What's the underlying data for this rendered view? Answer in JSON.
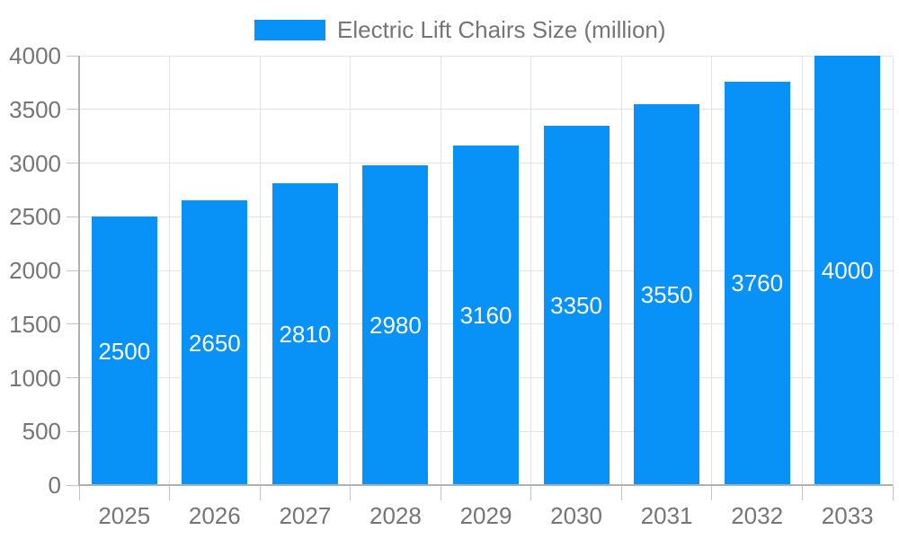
{
  "chart_data": {
    "type": "bar",
    "title": "",
    "categories": [
      "2025",
      "2026",
      "2027",
      "2028",
      "2029",
      "2030",
      "2031",
      "2032",
      "2033"
    ],
    "values": [
      2500,
      2650,
      2810,
      2980,
      3160,
      3350,
      3550,
      3760,
      4000
    ],
    "series_name": "Electric Lift Chairs Size (million)",
    "xlabel": "",
    "ylabel": "",
    "ylim": [
      0,
      4000
    ],
    "yticks": [
      0,
      500,
      1000,
      1500,
      2000,
      2500,
      3000,
      3500,
      4000
    ],
    "grid": true,
    "legend_position": "top",
    "bar_value_labels": "inside-centered"
  },
  "legend": {
    "label": "Electric Lift Chairs Size (million)"
  },
  "colors": {
    "bar": "#0891f7",
    "gridline": "#e3e3e3",
    "axis_line": "#b0b0b0",
    "tick": "#c4c4c4",
    "axis_text": "#757575",
    "bar_label_text": "#ffffff",
    "background": "#ffffff"
  }
}
